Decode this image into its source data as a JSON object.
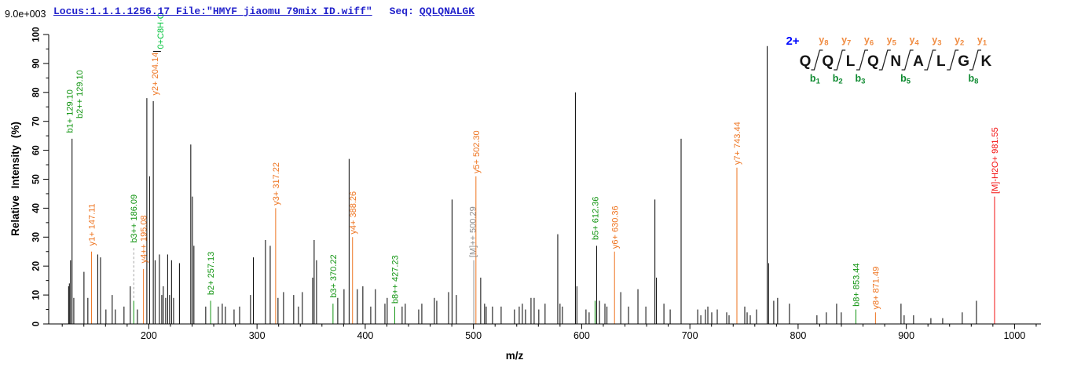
{
  "header": {
    "locus_file": "Locus:1.1.1.1256.17 File:\"HMYF_jiaomu_79mix_ID.wiff\"",
    "seq_label": "Seq:",
    "seq_value": "QQLQNALGK"
  },
  "scale_label": "9.0e+003",
  "peptide": {
    "charge": "2+",
    "residues": [
      "Q",
      "Q",
      "L",
      "Q",
      "N",
      "A",
      "L",
      "G",
      "K"
    ],
    "gaps": [
      {
        "y": [
          "y",
          "8"
        ],
        "b": [
          "b",
          "1"
        ]
      },
      {
        "y": [
          "y",
          "7"
        ],
        "b": [
          "b",
          "2"
        ]
      },
      {
        "y": [
          "y",
          "6"
        ],
        "b": [
          "b",
          "3"
        ]
      },
      {
        "y": [
          "y",
          "5"
        ],
        "b": null
      },
      {
        "y": [
          "y",
          "4"
        ],
        "b": [
          "b",
          "5"
        ]
      },
      {
        "y": [
          "y",
          "3"
        ],
        "b": null
      },
      {
        "y": [
          "y",
          "2"
        ],
        "b": null
      },
      {
        "y": [
          "y",
          "1"
        ],
        "b": [
          "b",
          "8"
        ]
      }
    ]
  },
  "colors": {
    "k": "#000000",
    "y": "#EE7420",
    "b": "#119411",
    "bg": "#00C33B",
    "g": "#8F8F8F",
    "r": "#F31111",
    "title_blue": "#2222CB",
    "charge_blue": "#0008FF",
    "seq_letter": "#151515",
    "seq_y": "#F08C42",
    "seq_b": "#0E8A30",
    "axis": "#000000"
  },
  "chart_data": {
    "type": "ms2-fragmentation-stick-spectrum",
    "title": "Locus:1.1.1.1256.17 File:\"HMYF_jiaomu_79mix_ID.wiff\"  Seq: QQLQNALGK",
    "xlabel": "m/z",
    "ylabel": "Relative Intensity (%)",
    "intensity_scale": "9.0e+003",
    "x_axis": {
      "range": [
        107,
        1024
      ],
      "major_ticks": [
        200,
        300,
        400,
        500,
        600,
        700,
        800,
        900,
        1000
      ],
      "minor_step": 20
    },
    "y_axis": {
      "range": [
        0,
        100
      ],
      "major_ticks": [
        0,
        10,
        20,
        30,
        40,
        50,
        60,
        70,
        80,
        90,
        100
      ],
      "minor_step": 5
    },
    "grid": false,
    "peaks_format": [
      "mz",
      "intensity_pct",
      "color_key_optional"
    ],
    "peaks": [
      [
        125.9,
        13
      ],
      [
        126.6,
        14
      ],
      [
        127.7,
        22
      ],
      [
        129.1,
        64
      ],
      [
        130.7,
        9
      ],
      [
        140.1,
        18
      ],
      [
        143.7,
        9
      ],
      [
        147.11,
        25,
        "y"
      ],
      [
        152.8,
        24
      ],
      [
        155.4,
        23
      ],
      [
        160.4,
        5
      ],
      [
        166.2,
        10
      ],
      [
        169.1,
        5
      ],
      [
        177.1,
        6
      ],
      [
        182.9,
        13
      ],
      [
        186.09,
        8,
        "b"
      ],
      [
        189.5,
        5
      ],
      [
        195.08,
        19,
        "y"
      ],
      [
        198.2,
        78
      ],
      [
        200.7,
        51
      ],
      [
        204.14,
        77
      ],
      [
        205.8,
        22
      ],
      [
        209.8,
        24
      ],
      [
        212.0,
        10
      ],
      [
        213.4,
        13
      ],
      [
        215.6,
        9
      ],
      [
        217.4,
        24
      ],
      [
        219.2,
        10
      ],
      [
        221.0,
        22
      ],
      [
        222.9,
        9
      ],
      [
        228.3,
        21
      ],
      [
        238.8,
        62
      ],
      [
        240.3,
        44
      ],
      [
        241.7,
        27
      ],
      [
        252.6,
        6
      ],
      [
        257.13,
        8,
        "b"
      ],
      [
        264.2,
        6
      ],
      [
        267.9,
        7
      ],
      [
        270.8,
        6
      ],
      [
        278.8,
        5
      ],
      [
        283.9,
        6
      ],
      [
        294.0,
        10
      ],
      [
        296.6,
        23
      ],
      [
        307.8,
        29
      ],
      [
        312.2,
        27
      ],
      [
        317.22,
        40,
        "y"
      ],
      [
        319.4,
        9
      ],
      [
        324.5,
        11
      ],
      [
        333.9,
        10
      ],
      [
        338.3,
        6
      ],
      [
        341.9,
        11
      ],
      [
        351.4,
        16
      ],
      [
        352.8,
        29
      ],
      [
        355.0,
        22
      ],
      [
        370.22,
        7,
        "b"
      ],
      [
        374.6,
        9
      ],
      [
        380.4,
        12
      ],
      [
        385.1,
        57
      ],
      [
        388.26,
        30,
        "y"
      ],
      [
        392.7,
        12
      ],
      [
        397.8,
        13
      ],
      [
        405.1,
        6
      ],
      [
        409.4,
        12
      ],
      [
        418.2,
        7
      ],
      [
        420.3,
        9
      ],
      [
        427.23,
        6,
        "b"
      ],
      [
        434.1,
        6
      ],
      [
        437.0,
        7
      ],
      [
        449.4,
        5
      ],
      [
        452.3,
        7
      ],
      [
        463.9,
        9
      ],
      [
        466.1,
        8
      ],
      [
        477.0,
        11
      ],
      [
        480.2,
        43
      ],
      [
        484.2,
        10
      ],
      [
        500.29,
        22,
        "g"
      ],
      [
        502.3,
        51,
        "y"
      ],
      [
        506.7,
        16
      ],
      [
        510.3,
        7
      ],
      [
        511.8,
        6
      ],
      [
        517.6,
        6
      ],
      [
        525.6,
        6
      ],
      [
        537.9,
        5
      ],
      [
        542.3,
        6
      ],
      [
        545.2,
        7
      ],
      [
        548.1,
        5
      ],
      [
        553.2,
        9
      ],
      [
        556.1,
        9
      ],
      [
        560.4,
        5
      ],
      [
        566.2,
        7
      ],
      [
        577.9,
        31
      ],
      [
        580.0,
        7
      ],
      [
        582.2,
        6
      ],
      [
        594.2,
        80
      ],
      [
        595.6,
        13
      ],
      [
        604.0,
        5
      ],
      [
        606.9,
        4
      ],
      [
        612.36,
        8,
        "b"
      ],
      [
        613.8,
        27
      ],
      [
        616.5,
        8
      ],
      [
        621.5,
        7
      ],
      [
        623.4,
        6
      ],
      [
        630.36,
        25,
        "y"
      ],
      [
        636.1,
        11
      ],
      [
        643.3,
        6
      ],
      [
        652.0,
        12
      ],
      [
        659.3,
        6
      ],
      [
        667.7,
        43
      ],
      [
        669.1,
        16
      ],
      [
        676.0,
        7
      ],
      [
        681.8,
        5
      ],
      [
        691.9,
        64
      ],
      [
        707.2,
        5
      ],
      [
        710.1,
        3
      ],
      [
        714.4,
        5
      ],
      [
        716.6,
        6
      ],
      [
        720.2,
        4
      ],
      [
        725.3,
        5
      ],
      [
        734.0,
        4
      ],
      [
        736.2,
        3
      ],
      [
        743.44,
        54,
        "y"
      ],
      [
        750.7,
        6
      ],
      [
        752.9,
        4
      ],
      [
        755.8,
        3
      ],
      [
        761.6,
        5
      ],
      [
        771.4,
        96
      ],
      [
        772.8,
        21
      ],
      [
        777.5,
        8
      ],
      [
        781.1,
        9
      ],
      [
        792.0,
        7
      ],
      [
        817.4,
        3
      ],
      [
        826.1,
        4
      ],
      [
        835.6,
        7
      ],
      [
        839.9,
        4
      ],
      [
        853.44,
        5,
        "b"
      ],
      [
        871.49,
        4,
        "y"
      ],
      [
        895.1,
        7
      ],
      [
        898.0,
        3
      ],
      [
        906.7,
        3
      ],
      [
        922.7,
        2
      ],
      [
        933.6,
        2
      ],
      [
        951.7,
        4
      ],
      [
        964.8,
        8
      ],
      [
        981.55,
        44,
        "r"
      ]
    ],
    "peak_labels": [
      {
        "text": "b1+ 129.10",
        "mz": 126.6,
        "base": 66,
        "c": "b"
      },
      {
        "text": "b2++ 129.10",
        "mz": 136.0,
        "base": 71,
        "c": "b"
      },
      {
        "text": "y1+ 147.11",
        "mz": 147.1,
        "base": 27,
        "c": "y"
      },
      {
        "text": "b3++ 186.09",
        "mz": 186.1,
        "base": 28,
        "c": "b",
        "leader": {
          "from": 9,
          "to": 26.5
        }
      },
      {
        "text": "y4++ 195.08",
        "mz": 195.1,
        "base": 21,
        "c": "y"
      },
      {
        "text": "y2+ 204.14",
        "mz": 205.5,
        "base": 79,
        "c": "y"
      },
      {
        "text": "0+C8H·C",
        "mz": 210.5,
        "base": 95,
        "c": "bg",
        "tick": true
      },
      {
        "text": "b2+ 257.13",
        "mz": 257.1,
        "base": 10,
        "c": "b"
      },
      {
        "text": "y3+ 317.22",
        "mz": 317.2,
        "base": 41,
        "c": "y"
      },
      {
        "text": "b3+ 370.22",
        "mz": 370.2,
        "base": 9,
        "c": "b"
      },
      {
        "text": "y4+ 388.26",
        "mz": 388.3,
        "base": 31,
        "c": "y"
      },
      {
        "text": "b8++ 427.23",
        "mz": 427.2,
        "base": 7,
        "c": "b"
      },
      {
        "text": "[M]++ 500.29",
        "mz": 499.0,
        "base": 23,
        "c": "g"
      },
      {
        "text": "y5+ 502.30",
        "mz": 502.3,
        "base": 52,
        "c": "y"
      },
      {
        "text": "b5+ 612.36",
        "mz": 612.4,
        "base": 29,
        "c": "b"
      },
      {
        "text": "y6+ 630.36",
        "mz": 630.4,
        "base": 26,
        "c": "y"
      },
      {
        "text": "y7+ 743.44",
        "mz": 743.4,
        "base": 55,
        "c": "y"
      },
      {
        "text": "b8+ 853.44",
        "mz": 853.4,
        "base": 6,
        "c": "b"
      },
      {
        "text": "y8+ 871.49",
        "mz": 871.5,
        "base": 5,
        "c": "y"
      },
      {
        "text": "[M]-H2O+ 981.55",
        "mz": 981.6,
        "base": 45,
        "c": "r"
      }
    ]
  }
}
